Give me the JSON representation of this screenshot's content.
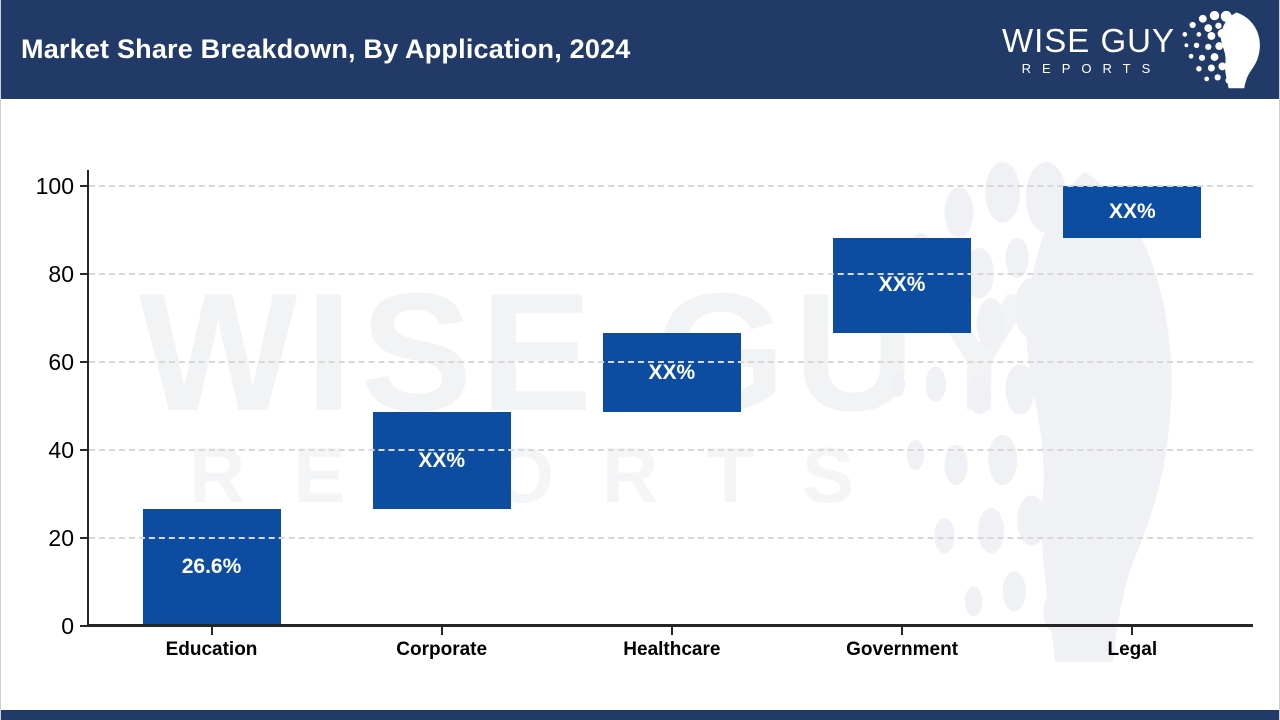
{
  "header": {
    "title": "Market Share Breakdown, By Application, 2024",
    "logo": {
      "name": "WISE GUY",
      "tagline": "REPORTS"
    }
  },
  "watermark": {
    "line1": "WISE GUY",
    "line2": "REPORTS"
  },
  "colors": {
    "header_bg": "#223a67",
    "bar": "#0c4da2",
    "bar_label": "#ffffff",
    "axis": "#262626",
    "gridline": "#d8d8d8",
    "watermark": "#f2f3f5",
    "page_bg": "#ffffff"
  },
  "chart_data": {
    "type": "bar",
    "subtype": "floating_segment_waterfall",
    "title": "Market Share Breakdown, By Application, 2024",
    "categories": [
      "Education",
      "Corporate",
      "Healthcare",
      "Government",
      "Legal"
    ],
    "bars": [
      {
        "category": "Education",
        "label": "26.6%",
        "start": 0,
        "end": 26.6
      },
      {
        "category": "Corporate",
        "label": "XX%",
        "start": 26.6,
        "end": 48.6
      },
      {
        "category": "Healthcare",
        "label": "XX%",
        "start": 48.6,
        "end": 66.6
      },
      {
        "category": "Government",
        "label": "XX%",
        "start": 66.6,
        "end": 88.2
      },
      {
        "category": "Legal",
        "label": "XX%",
        "start": 88.2,
        "end": 100
      }
    ],
    "xlabel": "",
    "ylabel": "",
    "yticks": [
      0,
      20,
      40,
      60,
      80,
      100
    ],
    "ylim": [
      0,
      104
    ],
    "grid": "horizontal-dashed",
    "legend": false
  }
}
